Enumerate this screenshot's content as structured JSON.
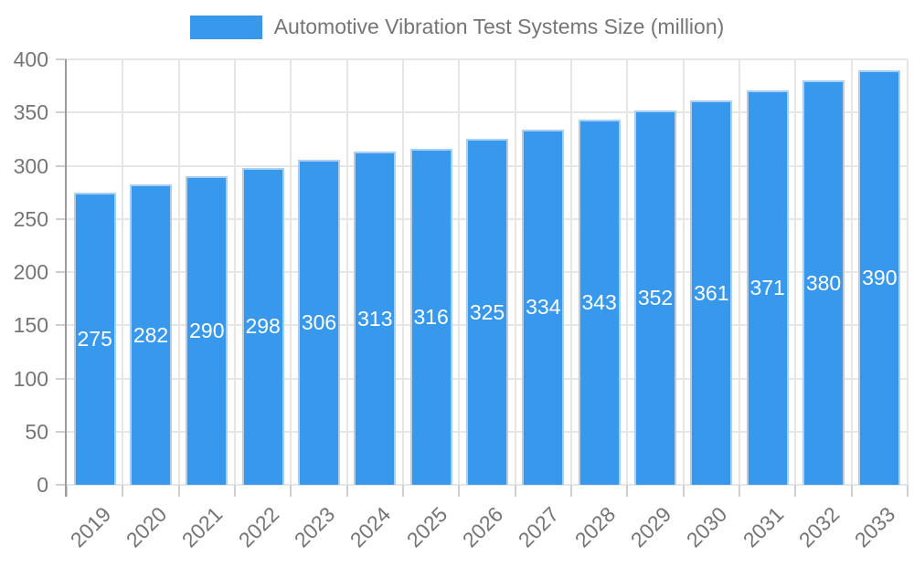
{
  "legend": {
    "label": "Automotive Vibration Test Systems Size (million)",
    "swatch_color": "#3899ec"
  },
  "chart_data": {
    "type": "bar",
    "title": "Automotive Vibration Test Systems Size (million)",
    "categories": [
      "2019",
      "2020",
      "2021",
      "2022",
      "2023",
      "2024",
      "2025",
      "2026",
      "2027",
      "2028",
      "2029",
      "2030",
      "2031",
      "2032",
      "2033"
    ],
    "values": [
      275,
      282,
      290,
      298,
      306,
      313,
      316,
      325,
      334,
      343,
      352,
      361,
      371,
      380,
      390
    ],
    "series": [
      {
        "name": "Automotive Vibration Test Systems Size (million)",
        "values": [
          275,
          282,
          290,
          298,
          306,
          313,
          316,
          325,
          334,
          343,
          352,
          361,
          371,
          380,
          390
        ]
      }
    ],
    "xlabel": "",
    "ylabel": "",
    "ylim": [
      0,
      400
    ],
    "yticks": [
      0,
      50,
      100,
      150,
      200,
      250,
      300,
      350,
      400
    ],
    "grid": true,
    "legend_position": "top",
    "value_labels": "inside-middle",
    "x_label_rotation_deg": 45,
    "colors": {
      "bar_fill": "#3899ec",
      "bar_border": "#a9cff4",
      "grid": "#e6e6e6",
      "axis_line": "#9b9b9b",
      "tick": "#cfcfcf",
      "text": "#757575",
      "value_label": "#ffffff"
    }
  }
}
